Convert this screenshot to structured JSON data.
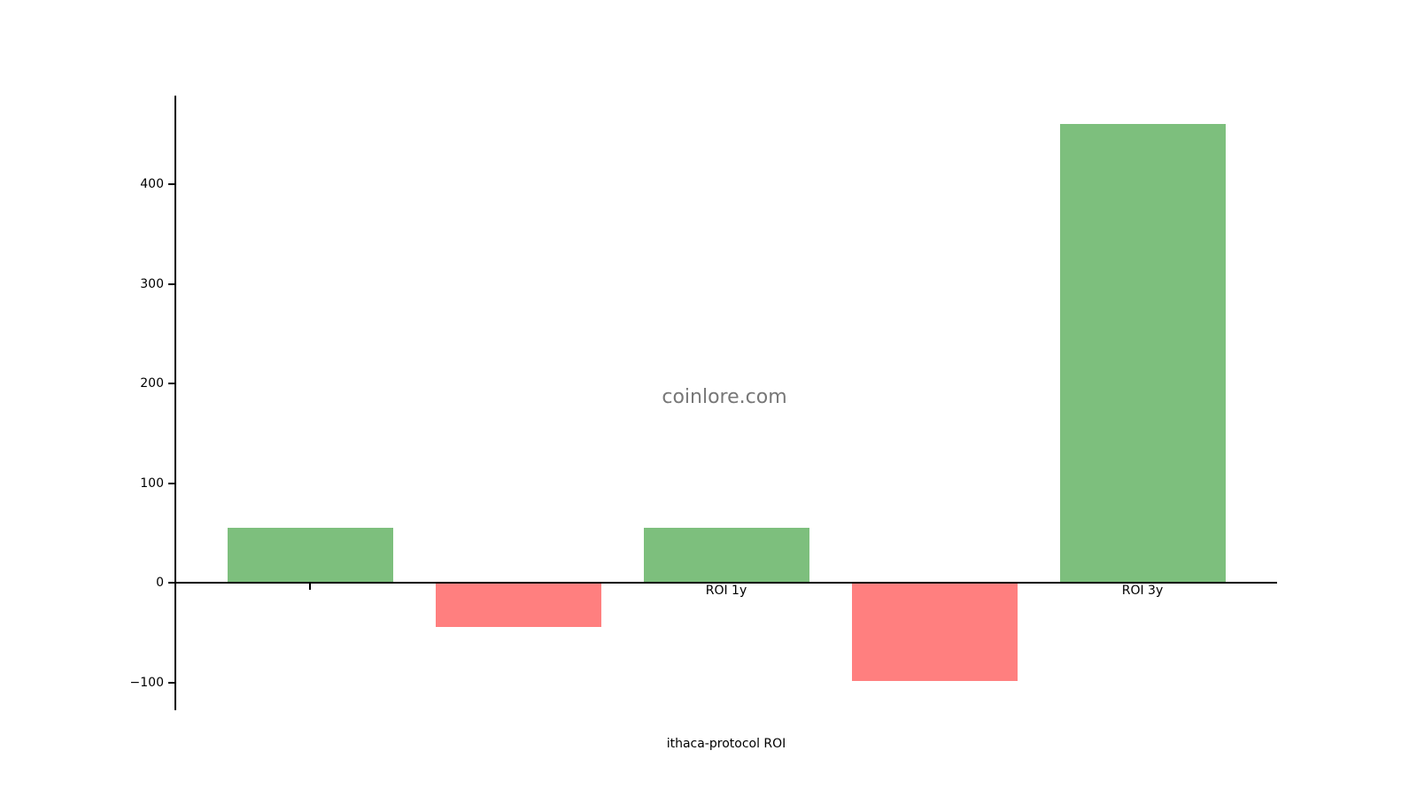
{
  "watermark": {
    "text": "coinlore.com",
    "color": "#777777"
  },
  "chart_data": {
    "type": "bar",
    "title": "ithaca-protocol ROI",
    "values": [
      55,
      -44,
      55,
      -98,
      461
    ],
    "xticks": [
      {
        "bar_index": 0,
        "label": "",
        "tick_visible": true
      },
      {
        "bar_index": 2,
        "label": "ROI 1y",
        "tick_visible": false
      },
      {
        "bar_index": 4,
        "label": "ROI 3y",
        "tick_visible": false
      }
    ],
    "yticks": [
      {
        "value": 400,
        "label": "400"
      },
      {
        "value": 300,
        "label": "300"
      },
      {
        "value": 200,
        "label": "200"
      },
      {
        "value": 100,
        "label": "100"
      },
      {
        "value": 0,
        "label": "0"
      },
      {
        "value": -100,
        "label": "−100"
      }
    ],
    "ylim": [
      -126,
      489
    ],
    "xlabel": "",
    "ylabel": "",
    "grid": false,
    "legend": "none",
    "colors": {
      "positive": "#7dbf7d",
      "negative": "#ff7f7f",
      "axis": "#000000",
      "text": "#000000"
    }
  }
}
